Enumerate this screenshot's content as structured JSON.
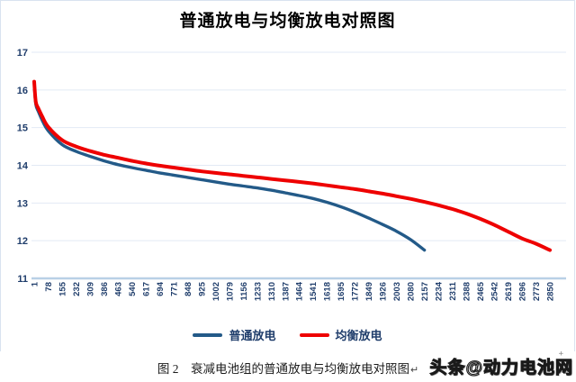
{
  "chart_data": {
    "type": "line",
    "title": "普通放电与均衡放电对照图",
    "xlabel": "",
    "ylabel": "",
    "ylim": [
      11,
      17
    ],
    "y_ticks": [
      17,
      16,
      15,
      14,
      13,
      12,
      11
    ],
    "x_max": 2850,
    "x_tick_labels": [
      "1",
      "78",
      "155",
      "232",
      "309",
      "386",
      "463",
      "540",
      "617",
      "694",
      "771",
      "848",
      "925",
      "1002",
      "1079",
      "1156",
      "1233",
      "1310",
      "1387",
      "1464",
      "1541",
      "1618",
      "1695",
      "1772",
      "1849",
      "1926",
      "2003",
      "2080",
      "2157",
      "2234",
      "2311",
      "2388",
      "2465",
      "2542",
      "2619",
      "2696",
      "2773",
      "2850"
    ],
    "grid": true,
    "legend_position": "bottom",
    "axis_label_color": "#1f3d6b",
    "gridline_color": "#e2eaf4",
    "axis_line_color": "#b9d0e6",
    "series": [
      {
        "name": "普通放电",
        "color": "#235a88",
        "width": 3.4,
        "x": [
          1,
          10,
          25,
          45,
          78,
          155,
          232,
          309,
          386,
          463,
          540,
          617,
          694,
          771,
          848,
          925,
          1002,
          1079,
          1156,
          1233,
          1310,
          1387,
          1464,
          1541,
          1618,
          1695,
          1772,
          1849,
          1926,
          2003,
          2080,
          2157
        ],
        "y": [
          16.2,
          15.62,
          15.42,
          15.2,
          14.92,
          14.55,
          14.37,
          14.24,
          14.12,
          14.02,
          13.94,
          13.87,
          13.8,
          13.74,
          13.68,
          13.62,
          13.56,
          13.5,
          13.45,
          13.4,
          13.34,
          13.27,
          13.2,
          13.12,
          13.02,
          12.9,
          12.76,
          12.6,
          12.43,
          12.25,
          12.03,
          11.75
        ]
      },
      {
        "name": "均衡放电",
        "color": "#ee0000",
        "width": 4,
        "x": [
          1,
          10,
          25,
          45,
          78,
          155,
          232,
          309,
          386,
          463,
          540,
          617,
          694,
          771,
          848,
          925,
          1002,
          1079,
          1156,
          1233,
          1310,
          1387,
          1464,
          1541,
          1618,
          1695,
          1772,
          1849,
          1926,
          2003,
          2080,
          2157,
          2234,
          2311,
          2388,
          2465,
          2542,
          2619,
          2696,
          2773,
          2850
        ],
        "y": [
          16.22,
          15.68,
          15.5,
          15.3,
          15.02,
          14.67,
          14.5,
          14.38,
          14.28,
          14.2,
          14.12,
          14.05,
          13.99,
          13.94,
          13.89,
          13.84,
          13.8,
          13.76,
          13.72,
          13.68,
          13.64,
          13.6,
          13.56,
          13.52,
          13.47,
          13.42,
          13.37,
          13.31,
          13.25,
          13.18,
          13.11,
          13.03,
          12.94,
          12.84,
          12.72,
          12.58,
          12.42,
          12.24,
          12.06,
          11.92,
          11.75
        ]
      }
    ]
  },
  "caption": {
    "text": "图 2　衰减电池组的普通放电与均衡放电对照图",
    "return_mark": "↵"
  },
  "watermark": {
    "text": "头条@动力电池网",
    "plus_mark": "+"
  }
}
